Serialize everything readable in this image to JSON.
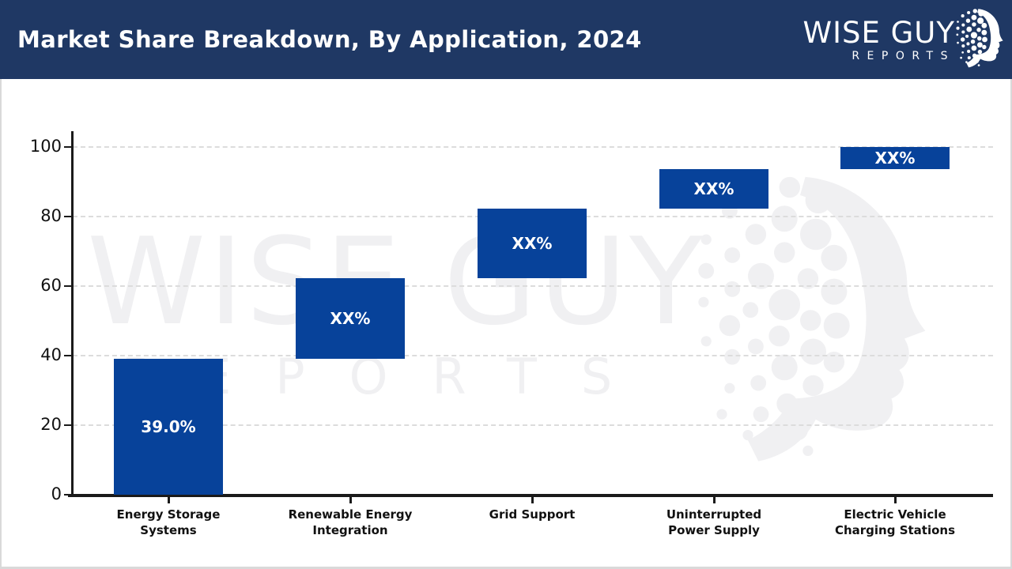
{
  "header": {
    "title": "Market Share Breakdown, By Application, 2024",
    "brand": {
      "line1": "WISE GUY",
      "line2": "REPORTS"
    }
  },
  "watermark": {
    "line1": "WISE GUY",
    "line2": "REPORTS"
  },
  "colors": {
    "header_bg": "#1f3864",
    "bar": "#07429a",
    "grid": "#dcdcdc",
    "axis": "#1a1a1a",
    "bar_label": "#ffffff",
    "watermark": "#f0f0f2"
  },
  "chart_data": {
    "type": "bar",
    "subtype": "waterfall",
    "title": "Market Share Breakdown, By Application, 2024",
    "categories": [
      "Energy Storage Systems",
      "Renewable Energy Integration",
      "Grid Support",
      "Uninterrupted Power Supply",
      "Electric Vehicle Charging Stations"
    ],
    "category_lines": [
      [
        "Energy Storage",
        "Systems"
      ],
      [
        "Renewable Energy",
        "Integration"
      ],
      [
        "Grid Support"
      ],
      [
        "Uninterrupted",
        "Power Supply"
      ],
      [
        "Electric Vehicle",
        "Charging Stations"
      ]
    ],
    "segments": [
      {
        "category": "Energy Storage Systems",
        "start": 0,
        "end": 39.0,
        "value": 39.0,
        "label": "39.0%"
      },
      {
        "category": "Renewable Energy Integration",
        "start": 39.0,
        "end": 62.3,
        "value": 23.3,
        "label": "XX%"
      },
      {
        "category": "Grid Support",
        "start": 62.3,
        "end": 82.3,
        "value": 20.0,
        "label": "XX%"
      },
      {
        "category": "Uninterrupted Power Supply",
        "start": 82.3,
        "end": 93.6,
        "value": 11.3,
        "label": "XX%"
      },
      {
        "category": "Electric Vehicle Charging Stations",
        "start": 93.6,
        "end": 100.0,
        "value": 6.4,
        "label": "XX%"
      }
    ],
    "yticks": [
      0,
      20,
      40,
      60,
      80,
      100
    ],
    "ylim": [
      0,
      104
    ],
    "xlabel": "",
    "ylabel": "",
    "grid": "horizontal-dashed",
    "legend": "none",
    "bar_color": "#07429a"
  }
}
